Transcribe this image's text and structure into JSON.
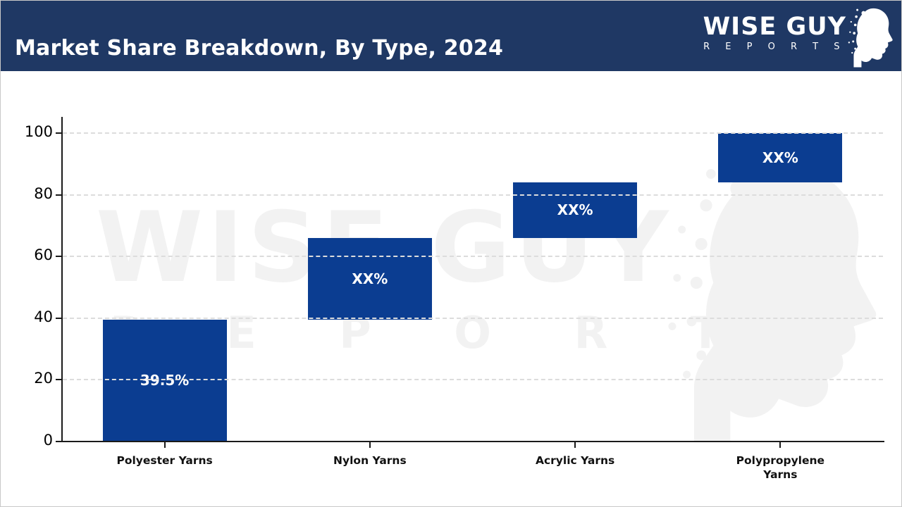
{
  "header": {
    "title": "Market Share Breakdown, By Type, 2024",
    "bg_color": "#1f3864",
    "logo": {
      "line1": "WISE GUY",
      "line2": "R E P O R T S"
    }
  },
  "watermark": {
    "line1": "WISE GUY",
    "line2": "R E P O R T S"
  },
  "chart_data": {
    "type": "bar",
    "variant": "waterfall",
    "title": "Market Share Breakdown, By Type, 2024",
    "xlabel": "",
    "ylabel": "",
    "categories": [
      "Polyester Yarns",
      "Nylon Yarns",
      "Acrylic Yarns",
      "Polypropylene\nYarns"
    ],
    "segments": [
      {
        "category": "Polyester Yarns",
        "start": 0,
        "end": 39.5,
        "label": "39.5%"
      },
      {
        "category": "Nylon Yarns",
        "start": 39.5,
        "end": 66,
        "label": "XX%"
      },
      {
        "category": "Acrylic Yarns",
        "start": 66,
        "end": 84,
        "label": "XX%"
      },
      {
        "category": "Polypropylene Yarns",
        "start": 84,
        "end": 100,
        "label": "XX%"
      }
    ],
    "ylim": [
      0,
      105
    ],
    "yticks": [
      0,
      20,
      40,
      60,
      80,
      100
    ],
    "grid": "dashed horizontal, drawn above bars",
    "legend": "none",
    "bar_color": "#0b3d91",
    "bar_label_color": "#ffffff",
    "axis_color": "#1a1a1a",
    "gridline_color": "#dcdcdc",
    "watermark_color": "#f2f2f2"
  }
}
